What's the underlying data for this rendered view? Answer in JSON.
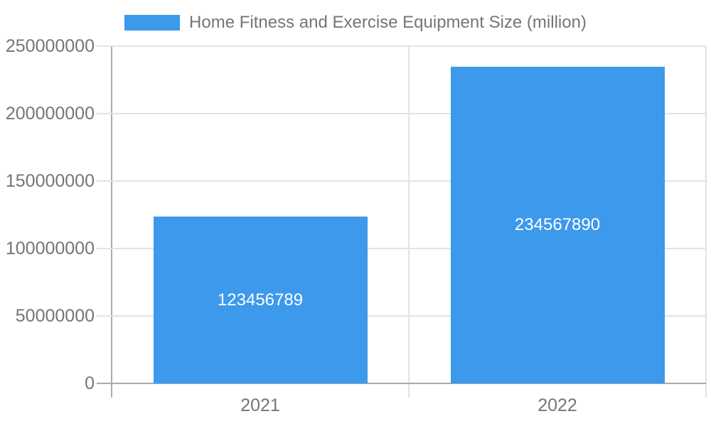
{
  "chart_data": {
    "type": "bar",
    "title": "Home Fitness and Exercise Equipment Size (million)",
    "legend": {
      "position": "top",
      "items": [
        {
          "label": "Home Fitness and Exercise Equipment Size (million)",
          "color": "#3C99EC"
        }
      ]
    },
    "categories": [
      "2021",
      "2022"
    ],
    "series": [
      {
        "name": "Home Fitness and Exercise Equipment Size (million)",
        "color": "#3C99EC",
        "values": [
          123456789,
          234567890
        ],
        "data_labels": [
          "123456789",
          "234567890"
        ]
      }
    ],
    "xlabel": "",
    "ylabel": "",
    "ylim": [
      0,
      250000000
    ],
    "y_ticks": [
      0,
      50000000,
      100000000,
      150000000,
      200000000,
      250000000
    ],
    "y_tick_labels": [
      "0",
      "50000000",
      "100000000",
      "150000000",
      "200000000",
      "250000000"
    ],
    "grid": true,
    "legend_position": "top",
    "colors": {
      "bar": "#3C99EC",
      "grid_line": "#e3e3e3",
      "zero_line": "#ababab",
      "tick_text": "#757575",
      "legend_text": "#757575",
      "data_label_text": "#ffffff",
      "background": "#ffffff"
    }
  }
}
